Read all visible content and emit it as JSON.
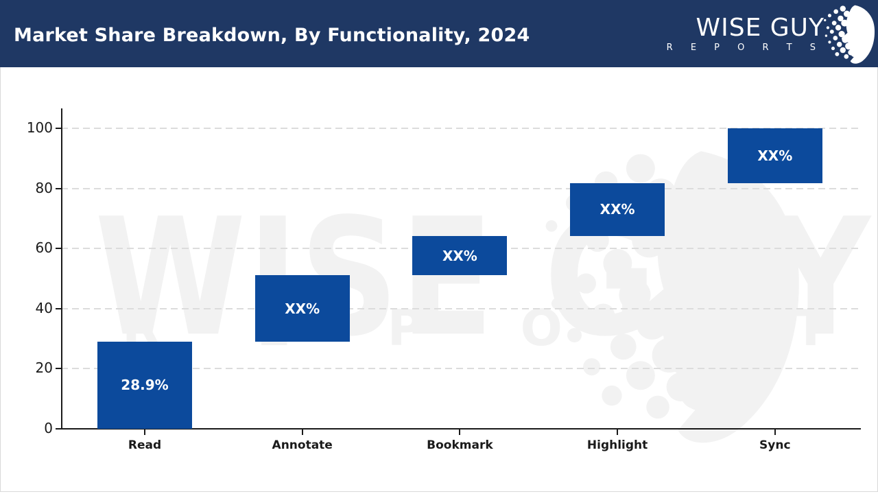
{
  "header": {
    "title": "Market Share Breakdown, By Functionality, 2024",
    "brand": {
      "name": "WISE GUY",
      "reports": "R E P O R T S"
    }
  },
  "watermark": {
    "line1": "WISE GUY",
    "line2": "R E P O R T S"
  },
  "chart_data": {
    "type": "bar",
    "variant": "floating-waterfall",
    "title": "Market Share Breakdown, By Functionality, 2024",
    "categories": [
      "Read",
      "Annotate",
      "Bookmark",
      "Highlight",
      "Sync"
    ],
    "segments": [
      {
        "category": "Read",
        "start": 0,
        "end": 28.9,
        "label": "28.9%"
      },
      {
        "category": "Annotate",
        "start": 28.9,
        "end": 51.0,
        "label": "XX%"
      },
      {
        "category": "Bookmark",
        "start": 51.0,
        "end": 64.2,
        "label": "XX%"
      },
      {
        "category": "Highlight",
        "start": 64.2,
        "end": 81.7,
        "label": "XX%"
      },
      {
        "category": "Sync",
        "start": 81.7,
        "end": 100,
        "label": "XX%"
      }
    ],
    "ylim": [
      0,
      105
    ],
    "yticks": [
      0,
      20,
      40,
      60,
      80,
      100
    ],
    "grid": "horizontal-dashed",
    "legend": "none",
    "xlabel": "",
    "ylabel": "",
    "colors": {
      "bar": "#0c4a9c",
      "bar_label": "#ffffff",
      "grid": "#dcdcdc",
      "axis": "#1a1a1a",
      "tick_label": "#1a1a1a"
    }
  },
  "colors": {
    "header_bg": "#1f3864",
    "page_bg": "#ffffff",
    "watermark": "#f2f2f2",
    "border": "#d9d9d9"
  }
}
